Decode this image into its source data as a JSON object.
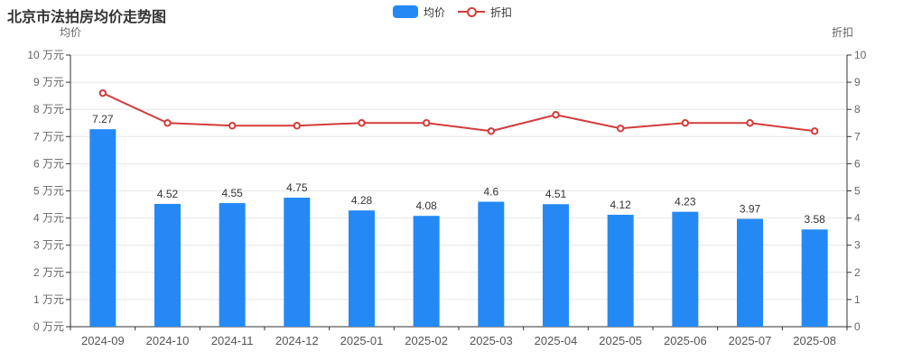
{
  "title": "北京市法拍房均价走势图",
  "legend": {
    "items": [
      {
        "label": "均价",
        "type": "bar",
        "color": "#2589f5"
      },
      {
        "label": "折扣",
        "type": "line",
        "color": "#d43c3c"
      }
    ]
  },
  "chart_data": {
    "type": "bar+line combo",
    "title": "北京市法拍房均价走势图",
    "categories": [
      "2024-09",
      "2024-10",
      "2024-11",
      "2024-12",
      "2025-01",
      "2025-02",
      "2025-03",
      "2025-04",
      "2025-05",
      "2025-06",
      "2025-07",
      "2025-08"
    ],
    "series": [
      {
        "name": "均价",
        "type": "bar",
        "axis": "left",
        "color": "#2589f5",
        "values": [
          7.27,
          4.52,
          4.55,
          4.75,
          4.28,
          4.08,
          4.6,
          4.51,
          4.12,
          4.23,
          3.97,
          3.58
        ],
        "data_labels_shown": true
      },
      {
        "name": "折扣",
        "type": "line",
        "axis": "right",
        "color": "#d43c3c",
        "marker": "hollow-circle",
        "values": [
          8.6,
          7.5,
          7.4,
          7.4,
          7.5,
          7.5,
          7.2,
          7.8,
          7.3,
          7.5,
          7.5,
          7.2
        ],
        "data_labels_shown": false
      }
    ],
    "left_axis": {
      "name": "均价",
      "min": 0,
      "max": 10,
      "step": 1,
      "tick_suffix": " 万元"
    },
    "right_axis": {
      "name": "折扣",
      "min": 0,
      "max": 10,
      "step": 1,
      "tick_suffix": ""
    },
    "grid": true,
    "legend_position": "top-center",
    "colors": {
      "grid_line": "#e6e6e6",
      "axis_line": "#333333",
      "tick_text": "#666666",
      "category_text": "#555555",
      "bar_label_text": "#333333"
    }
  }
}
